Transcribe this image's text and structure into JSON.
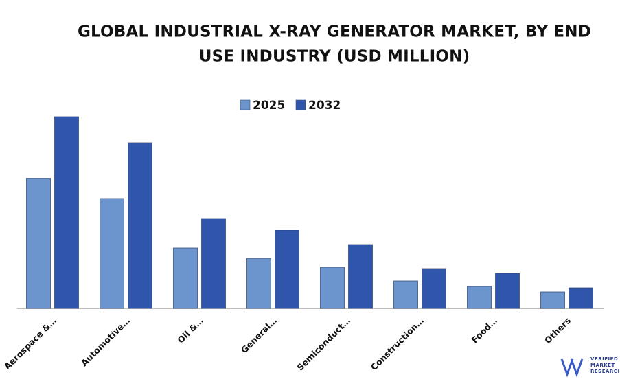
{
  "chart_data": {
    "type": "bar",
    "title": [
      "GLOBAL INDUSTRIAL X-RAY GENERATOR MARKET, BY END",
      "USE INDUSTRY (USD MILLION)"
    ],
    "categories": [
      "Aerospace &…",
      "Automotive…",
      "Oil &…",
      "General…",
      "Semiconduct…",
      "Construction…",
      "Food…",
      "Others"
    ],
    "series": [
      {
        "name": "2025",
        "color": "#6b95cc",
        "values": [
          190,
          160,
          88,
          73,
          60,
          40,
          32,
          24
        ]
      },
      {
        "name": "2032",
        "color": "#2f56ab",
        "values": [
          280,
          242,
          131,
          114,
          93,
          58,
          51,
          30
        ]
      }
    ]
  },
  "logo": [
    "VERIFIED",
    "MARKET",
    "RESEARCH"
  ]
}
